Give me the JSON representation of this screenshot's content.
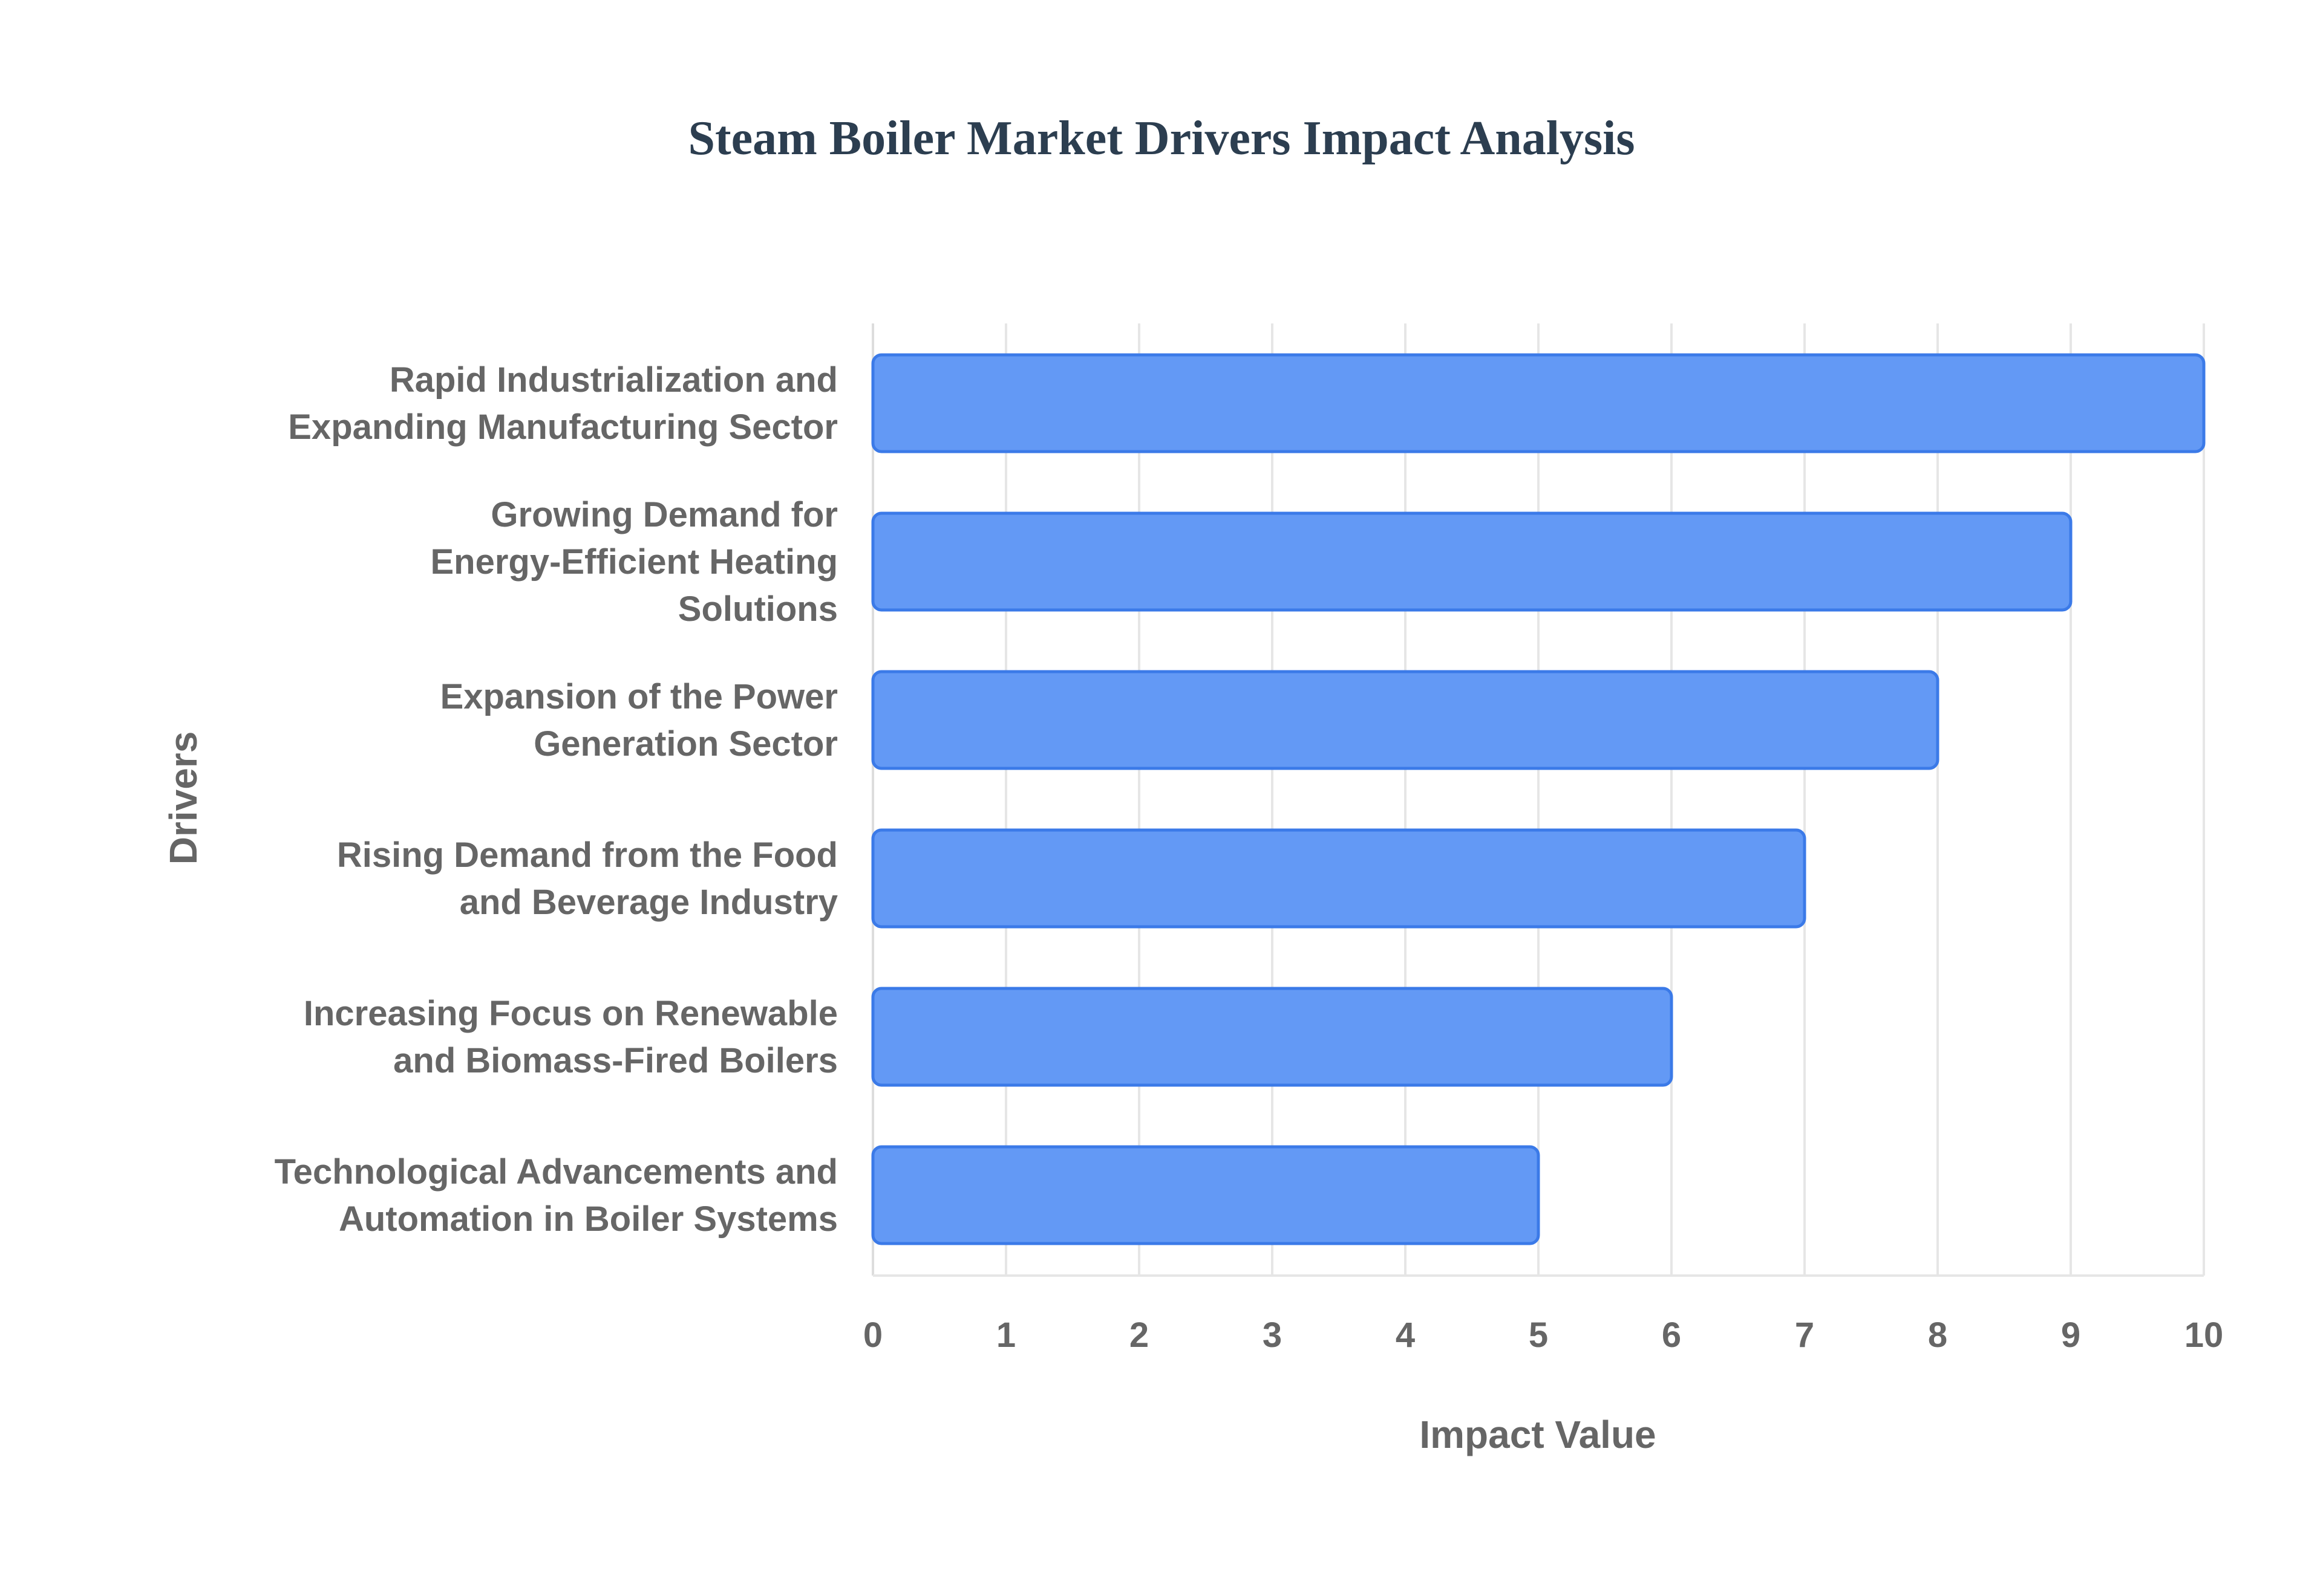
{
  "colors": {
    "bar_fill": "#6399f5",
    "bar_stroke": "#3b7ae8",
    "title": "#2c3e50",
    "text": "#666666",
    "grid": "#e6e6e6"
  },
  "chart_data": {
    "type": "bar",
    "orientation": "horizontal",
    "title": "Steam Boiler Market Drivers Impact Analysis",
    "xlabel": "Impact Value",
    "ylabel": "Drivers",
    "xlim": [
      0,
      10
    ],
    "x_ticks": [
      "0",
      "1",
      "2",
      "3",
      "4",
      "5",
      "6",
      "7",
      "8",
      "9",
      "10"
    ],
    "grid": true,
    "legend": "none",
    "categories": [
      "Rapid Industrialization and Expanding Manufacturing Sector",
      "Growing Demand for Energy-Efficient Heating Solutions",
      "Expansion of the Power Generation Sector",
      "Rising Demand from the Food and Beverage Industry",
      "Increasing Focus on Renewable and Biomass-Fired Boilers",
      "Technological Advancements and Automation in Boiler Systems"
    ],
    "category_label_lines": [
      [
        "Rapid Industrialization and",
        "Expanding Manufacturing Sector"
      ],
      [
        "Growing Demand for",
        "Energy-Efficient Heating",
        "Solutions"
      ],
      [
        "Expansion of the Power",
        "Generation Sector"
      ],
      [
        "Rising Demand from the Food",
        "and Beverage Industry"
      ],
      [
        "Increasing Focus on Renewable",
        "and Biomass-Fired Boilers"
      ],
      [
        "Technological Advancements and",
        "Automation in Boiler Systems"
      ]
    ],
    "values": [
      10,
      9,
      8,
      7,
      6,
      5
    ]
  }
}
